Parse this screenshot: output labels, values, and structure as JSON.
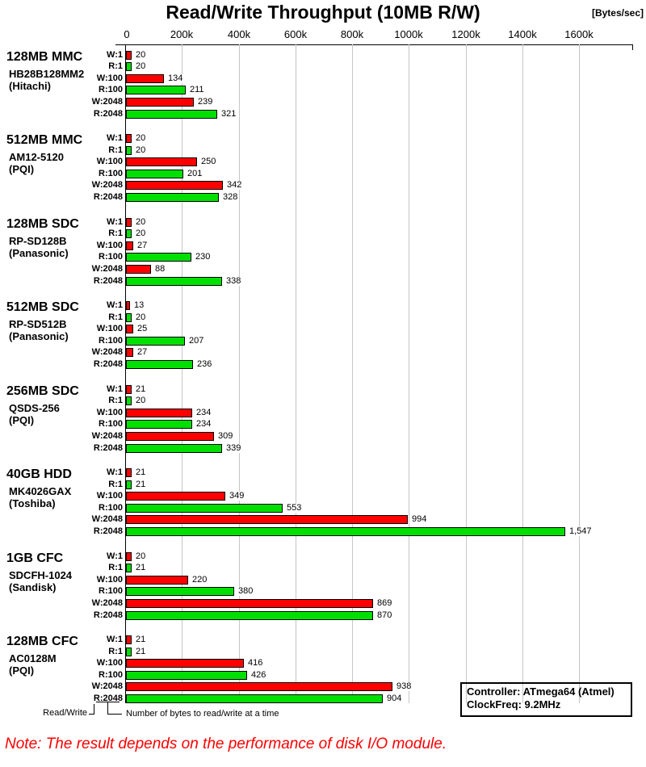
{
  "title": "Read/Write Throughput (10MB R/W)",
  "units_label": "[Bytes/sec]",
  "chart_data": {
    "type": "bar",
    "orientation": "horizontal",
    "title": "Read/Write Throughput (10MB R/W)",
    "axis_unit": "Bytes/sec",
    "axis_tick_labels": [
      "0",
      "200k",
      "400k",
      "600k",
      "800k",
      "1000k",
      "1200k",
      "1400k",
      "1600k"
    ],
    "axis_range_k": [
      0,
      1786
    ],
    "grid": true,
    "bar_row_labels": [
      "W:1",
      "R:1",
      "W:100",
      "R:100",
      "W:2048",
      "R:2048"
    ],
    "value_note": "bar data labels are plotted x1000 on the Bytes/sec axis",
    "colors": {
      "write_bar": "#ff0000",
      "read_bar": "#00e000",
      "gridline": "#c6c6c6"
    },
    "groups": [
      {
        "name": "128MB MMC",
        "model": "HB28B128MM2",
        "brand": "(Hitachi)",
        "values": [
          20,
          20,
          134,
          211,
          239,
          321
        ]
      },
      {
        "name": "512MB MMC",
        "model": "AM12-5120",
        "brand": "(PQI)",
        "values": [
          20,
          20,
          250,
          201,
          342,
          328
        ]
      },
      {
        "name": "128MB SDC",
        "model": "RP-SD128B",
        "brand": "(Panasonic)",
        "values": [
          20,
          20,
          27,
          230,
          88,
          338
        ]
      },
      {
        "name": "512MB SDC",
        "model": "RP-SD512B",
        "brand": "(Panasonic)",
        "values": [
          13,
          20,
          25,
          207,
          27,
          236
        ]
      },
      {
        "name": "256MB SDC",
        "model": "QSDS-256",
        "brand": "(PQI)",
        "values": [
          21,
          20,
          234,
          234,
          309,
          339
        ]
      },
      {
        "name": "40GB HDD",
        "model": "MK4026GAX",
        "brand": "(Toshiba)",
        "values": [
          21,
          21,
          349,
          553,
          994,
          1547
        ]
      },
      {
        "name": "1GB CFC",
        "model": "SDCFH-1024",
        "brand": "(Sandisk)",
        "values": [
          20,
          21,
          220,
          380,
          869,
          870
        ]
      },
      {
        "name": "128MB CFC",
        "model": "AC0128M",
        "brand": "(PQI)",
        "values": [
          21,
          21,
          416,
          426,
          938,
          904
        ]
      }
    ]
  },
  "legend": {
    "read_write": "Read/Write",
    "bytes_note": "Number of bytes to read/write at a time"
  },
  "info_box": {
    "line1": "Controller: ATmega64 (Atmel)",
    "line2": "ClockFreq: 9.2MHz"
  },
  "footnote": "Note: The result depends on the performance of disk I/O module."
}
